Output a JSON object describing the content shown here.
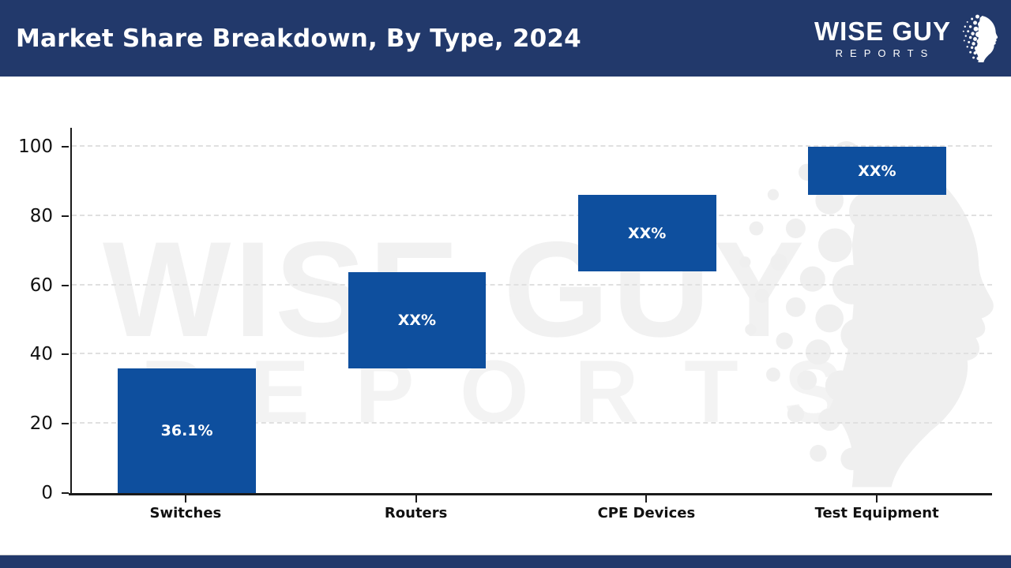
{
  "header": {
    "title": "Market Share Breakdown, By Type, 2024",
    "bg_color": "#22396b"
  },
  "logo": {
    "name": "WISE GUY",
    "subtitle": "REPORTS"
  },
  "watermark": {
    "line1": "WISE GUY",
    "line2": "REPORTS"
  },
  "chart_data": {
    "type": "bar",
    "subtype": "waterfall-floating-bars",
    "title": "Market Share Breakdown, By Type, 2024",
    "categories": [
      "Switches",
      "Routers",
      "CPE Devices",
      "Test Equipment"
    ],
    "bars": [
      {
        "category": "Switches",
        "start": 0,
        "end": 36.1,
        "label": "36.1%"
      },
      {
        "category": "Routers",
        "start": 36.1,
        "end": 63.9,
        "label": "XX%"
      },
      {
        "category": "CPE Devices",
        "start": 63.9,
        "end": 86.0,
        "label": "XX%"
      },
      {
        "category": "Test Equipment",
        "start": 86.0,
        "end": 100.0,
        "label": "XX%"
      }
    ],
    "xlabel": "",
    "ylabel": "",
    "ylim": [
      0,
      100
    ],
    "yticks": [
      0,
      20,
      40,
      60,
      80,
      100
    ],
    "grid": "horizontal-dashed",
    "legend": "none",
    "bar_color": "#0e4f9e",
    "bar_label_color": "#ffffff",
    "axis_color": "#1a1a1a"
  }
}
